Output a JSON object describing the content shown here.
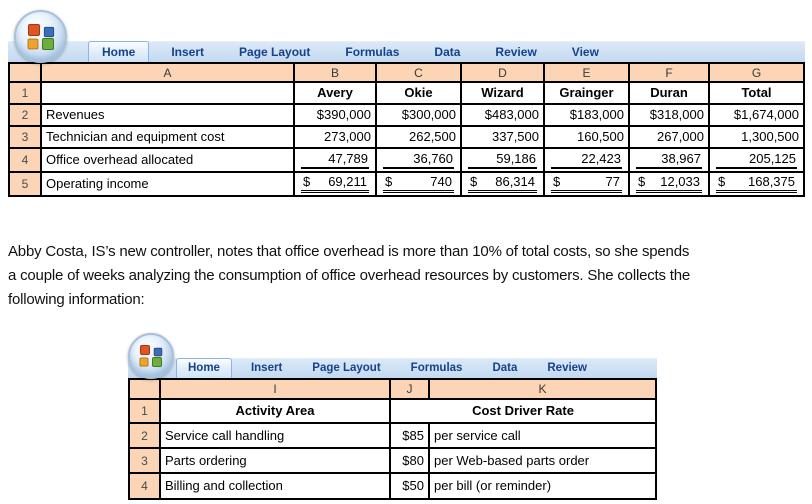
{
  "colors": {
    "header_fill": "#FBD5B5",
    "ribbon_band": "#C9DDF2",
    "tab_text": "#15428B",
    "grid_line": "#000000"
  },
  "paragraph": {
    "lines": [
      "Abby Costa, IS’s new controller, notes that office overhead is more than 10% of total costs, so she spends",
      "a couple of weeks analyzing the consumption of office overhead resources by customers. She collects the",
      "following information:"
    ]
  },
  "sheet1": {
    "tabs": [
      "Home",
      "Insert",
      "Page Layout",
      "Formulas",
      "Data",
      "Review",
      "View"
    ],
    "active_tab": "Home",
    "col_headers": [
      "A",
      "B",
      "C",
      "D",
      "E",
      "F",
      "G"
    ],
    "row1": {
      "num": "1",
      "values": [
        "Avery",
        "Okie",
        "Wizard",
        "Grainger",
        "Duran",
        "Total"
      ]
    },
    "rows": [
      {
        "num": "2",
        "label": "Revenues",
        "values": [
          "$390,000",
          "$300,000",
          "$483,000",
          "$183,000",
          "$318,000",
          "$1,674,000"
        ]
      },
      {
        "num": "3",
        "label": "Technician and equipment cost",
        "values": [
          "273,000",
          "262,500",
          "337,500",
          "160,500",
          "267,000",
          "1,300,500"
        ]
      },
      {
        "num": "4",
        "label": "Office overhead allocated",
        "values": [
          "47,789",
          "36,760",
          "59,186",
          "22,423",
          "38,967",
          "205,125"
        ]
      },
      {
        "num": "5",
        "label": "Operating income",
        "dollar": "$",
        "values": [
          "69,211",
          "740",
          "86,314",
          "77",
          "12,033",
          "168,375"
        ]
      }
    ]
  },
  "sheet2": {
    "tabs": [
      "Home",
      "Insert",
      "Page Layout",
      "Formulas",
      "Data",
      "Review"
    ],
    "active_tab": "Home",
    "col_headers": [
      "I",
      "J",
      "K"
    ],
    "header_row": {
      "num": "1",
      "activity_label": "Activity Area",
      "rate_label": "Cost Driver Rate"
    },
    "rows": [
      {
        "num": "2",
        "activity": "Service call handling",
        "rate": "$85",
        "unit": "per service call"
      },
      {
        "num": "3",
        "activity": "Parts ordering",
        "rate": "$80",
        "unit": "per Web-based parts order"
      },
      {
        "num": "4",
        "activity": "Billing and collection",
        "rate": "$50",
        "unit": "per bill (or reminder)"
      }
    ]
  }
}
